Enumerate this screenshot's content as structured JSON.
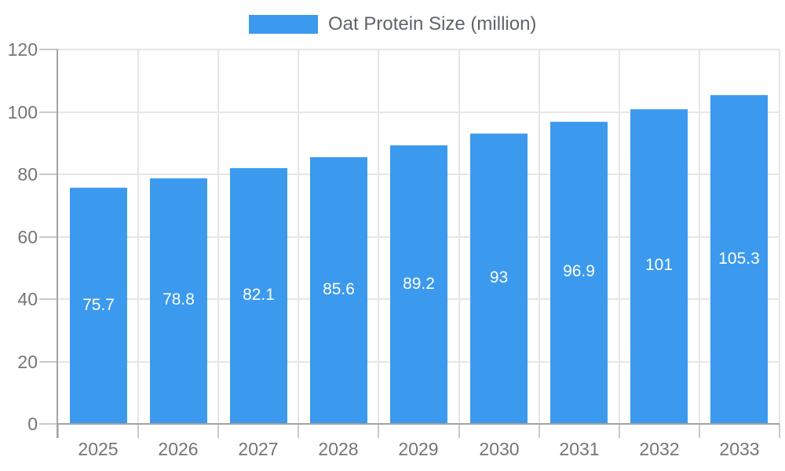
{
  "legend": {
    "label": "Oat Protein Size (million)",
    "swatch_color": "#3b99ee"
  },
  "chart_data": {
    "type": "bar",
    "title": "Oat Protein Size (million)",
    "categories": [
      "2025",
      "2026",
      "2027",
      "2028",
      "2029",
      "2030",
      "2031",
      "2032",
      "2033"
    ],
    "values": [
      75.7,
      78.8,
      82.1,
      85.6,
      89.2,
      93,
      96.9,
      101,
      105.3
    ],
    "value_labels": [
      "75.7",
      "78.8",
      "82.1",
      "85.6",
      "89.2",
      "93",
      "96.9",
      "101",
      "105.3"
    ],
    "xlabel": "",
    "ylabel": "",
    "ylim": [
      0,
      120
    ],
    "yticks": [
      0,
      20,
      40,
      60,
      80,
      100,
      120
    ],
    "grid": true,
    "legend_position": "top-center",
    "series_name": "Oat Protein Size (million)",
    "bar_color": "#3b99ee",
    "value_label_color": "#ffffff",
    "axis_text_color": "#757575"
  }
}
